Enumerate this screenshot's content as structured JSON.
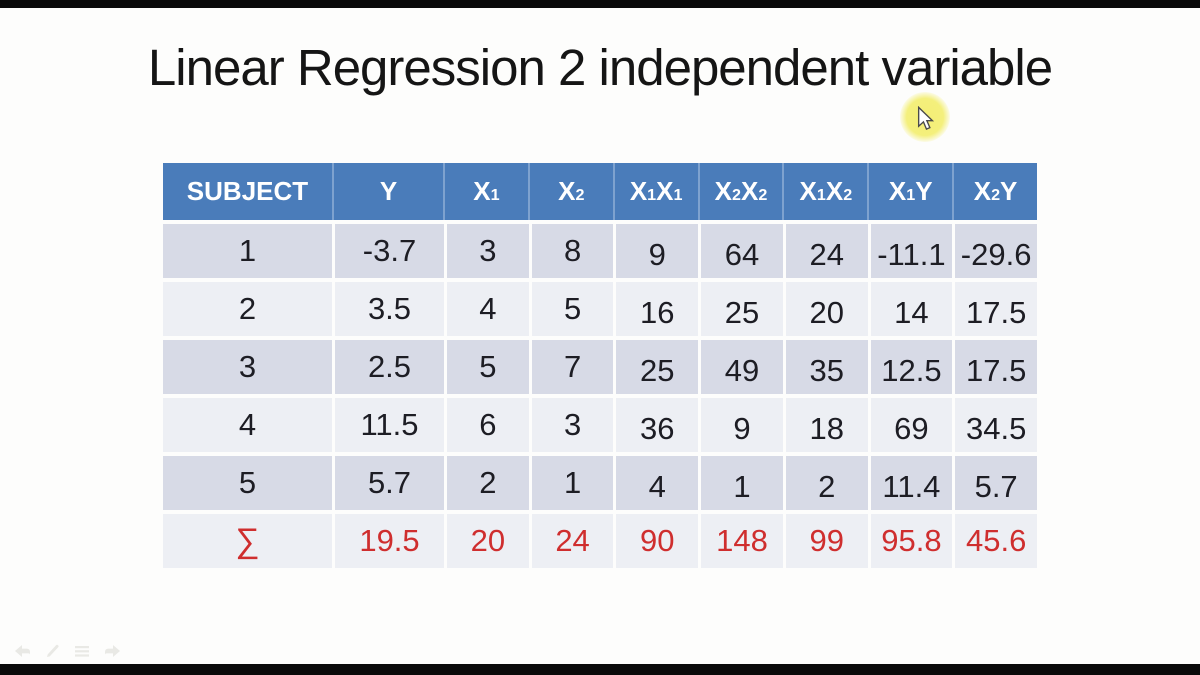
{
  "slide": {
    "title": "Linear Regression 2 independent variable",
    "table": {
      "headers": [
        "SUBJECT",
        "Y",
        "X₁",
        "X₂",
        "X₁X₁",
        "X₂X₂",
        "X₁X₂",
        "X₁Y",
        "X₂Y"
      ],
      "rows": [
        [
          "1",
          "-3.7",
          "3",
          "8",
          "9",
          "64",
          "24",
          "-11.1",
          "-29.6"
        ],
        [
          "2",
          "3.5",
          "4",
          "5",
          "16",
          "25",
          "20",
          "14",
          "17.5"
        ],
        [
          "3",
          "2.5",
          "5",
          "7",
          "25",
          "49",
          "35",
          "12.5",
          "17.5"
        ],
        [
          "4",
          "11.5",
          "6",
          "3",
          "36",
          "9",
          "18",
          "69",
          "34.5"
        ],
        [
          "5",
          "5.7",
          "2",
          "1",
          "4",
          "1",
          "2",
          "11.4",
          "5.7"
        ]
      ],
      "sum_row": [
        "∑",
        "19.5",
        "20",
        "24",
        "90",
        "148",
        "99",
        "95.8",
        "45.6"
      ]
    }
  },
  "player_controls": {
    "icons": [
      "back-arrow-icon",
      "pen-icon",
      "menu-icon",
      "forward-arrow-icon"
    ]
  },
  "colors": {
    "header_bg": "#4A7CBA",
    "header_sep": "#7EA2CF",
    "row_dark": "#D7DAE6",
    "row_light": "#EDEFF4",
    "sum_text": "#CF2E2E",
    "highlight_yellow": "#F3EE6E"
  }
}
